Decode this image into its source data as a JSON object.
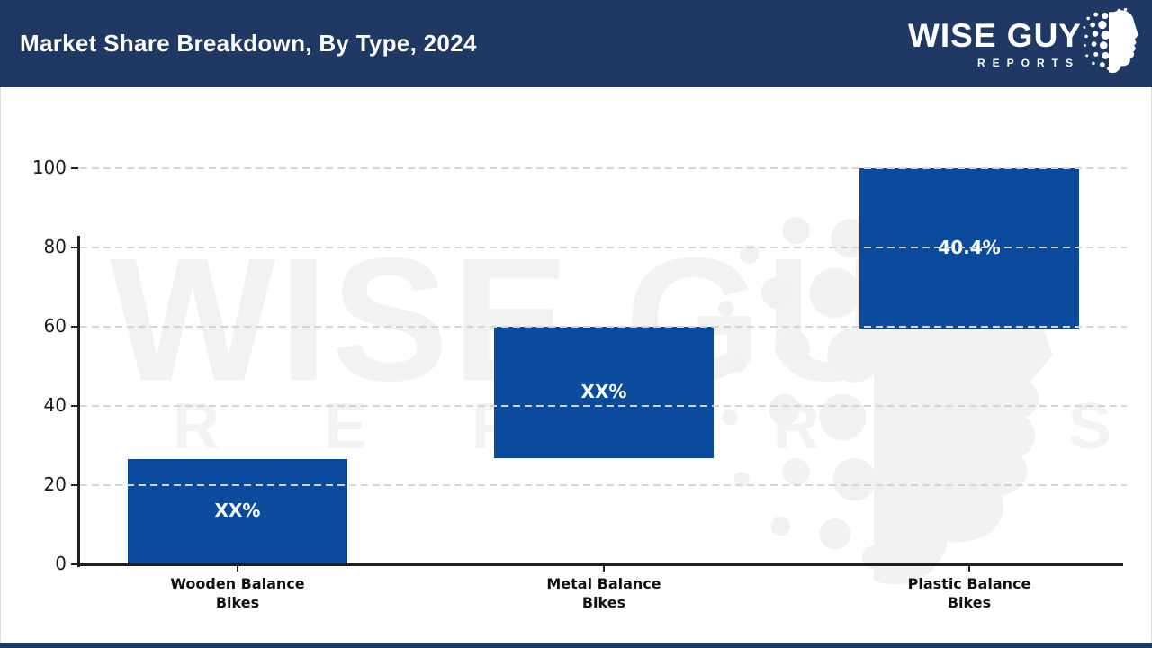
{
  "header": {
    "title": "Market Share Breakdown, By Type, 2024",
    "bg_color": "#1f3864",
    "logo": {
      "line1": "WISE GUY",
      "line2": "REPORTS"
    }
  },
  "watermark": {
    "line1": "WISE GUY",
    "line2": "R E P O R T S",
    "color": "#f2f2f2"
  },
  "chart_data": {
    "type": "bar",
    "variant": "floating-segment waterfall breakdown",
    "title": "Market Share Breakdown, By Type, 2024",
    "categories": [
      [
        "Wooden Balance",
        "Bikes"
      ],
      [
        "Metal Balance",
        "Bikes"
      ],
      [
        "Plastic Balance",
        "Bikes"
      ]
    ],
    "segments": [
      {
        "name": "Wooden Balance Bikes",
        "base": 0,
        "top": 26.7,
        "label": "XX%"
      },
      {
        "name": "Metal Balance Bikes",
        "base": 26.9,
        "top": 60.0,
        "label": "XX%"
      },
      {
        "name": "Plastic Balance Bikes",
        "base": 59.6,
        "top": 100.0,
        "label": "40.4%"
      }
    ],
    "xlabel": "",
    "ylabel": "",
    "ylim": [
      0,
      100
    ],
    "yticks": [
      0,
      20,
      40,
      60,
      80,
      100
    ],
    "grid": {
      "axis": "y",
      "style": "dashed",
      "color": "#d5d5d5",
      "drawn_above_bars": true
    },
    "legend": "none",
    "bar_color": "#0a4b9e",
    "bar_label_color": "#ffffff",
    "axis_color": "#1f1f1f"
  }
}
